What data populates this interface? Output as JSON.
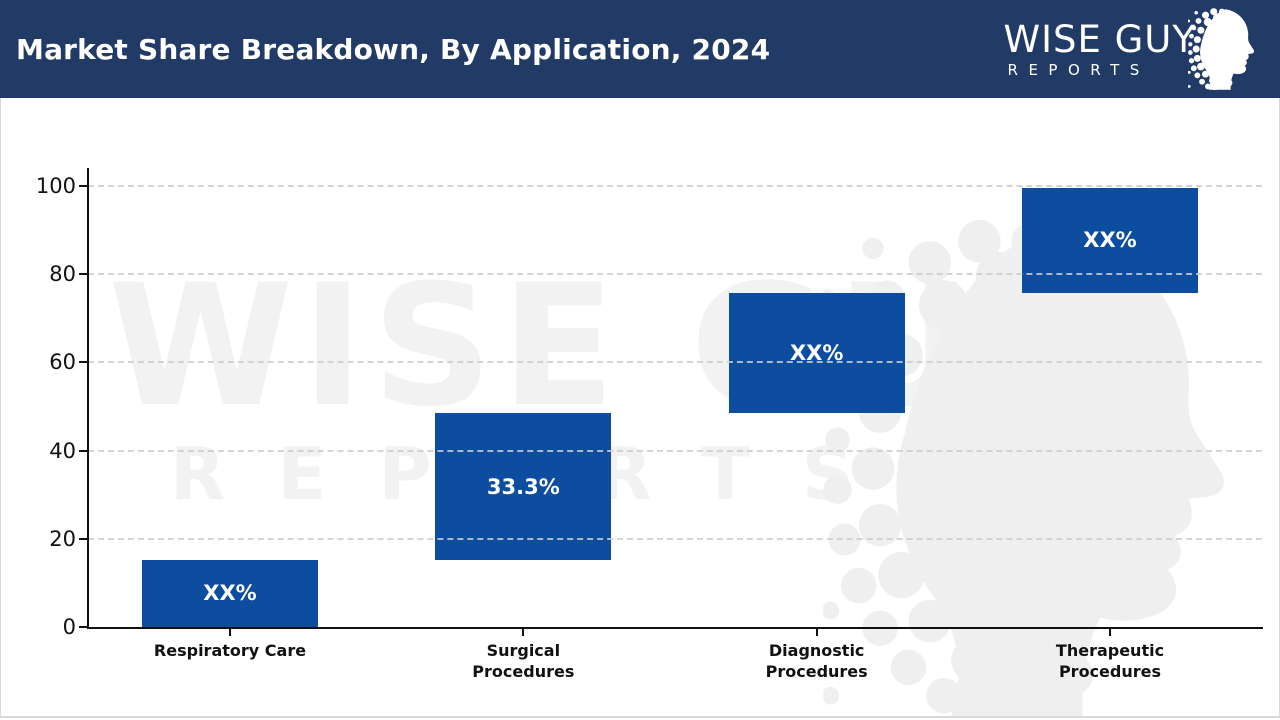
{
  "header": {
    "title": "Market Share Breakdown, By Application, 2024",
    "logo": {
      "line1": "WISE GUY",
      "line2": "REPORTS"
    }
  },
  "watermark": {
    "line1": "WISE GUY",
    "line2": "REPORTS"
  },
  "chart_data": {
    "type": "bar",
    "variant": "waterfall",
    "title": "Market Share Breakdown, By Application, 2024",
    "categories": [
      "Respiratory Care",
      "Surgical Procedures",
      "Diagnostic Procedures",
      "Therapeutic Procedures"
    ],
    "segments": [
      {
        "category": "Respiratory Care",
        "lines": [
          "Respiratory Care"
        ],
        "start": 0,
        "end": 15.2,
        "size": 15.2,
        "label": "XX%"
      },
      {
        "category": "Surgical Procedures",
        "lines": [
          "Surgical",
          "Procedures"
        ],
        "start": 15.2,
        "end": 48.5,
        "size": 33.3,
        "label": "33.3%"
      },
      {
        "category": "Diagnostic Procedures",
        "lines": [
          "Diagnostic",
          "Procedures"
        ],
        "start": 48.5,
        "end": 75.8,
        "size": 27.3,
        "label": "XX%"
      },
      {
        "category": "Therapeutic Procedures",
        "lines": [
          "Therapeutic",
          "Procedures"
        ],
        "start": 75.8,
        "end": 99.5,
        "size": 23.7,
        "label": "XX%"
      }
    ],
    "yticks": [
      0,
      20,
      40,
      60,
      80,
      100
    ],
    "ylim": [
      0,
      105
    ],
    "xlabel": "",
    "ylabel": "",
    "grid": "dashed horizontal gridlines drawn over bars",
    "legend": "none",
    "bar_color": "#0C4DA0",
    "label_color": "#FFFFFF"
  },
  "colors": {
    "header_bg": "#213A66",
    "bar": "#0C4DA0",
    "grid": "#CDCDCD",
    "watermark": "#F2F2F2",
    "axis": "#111111",
    "title_text": "#FFFFFF",
    "border": "#D9D9D9"
  }
}
